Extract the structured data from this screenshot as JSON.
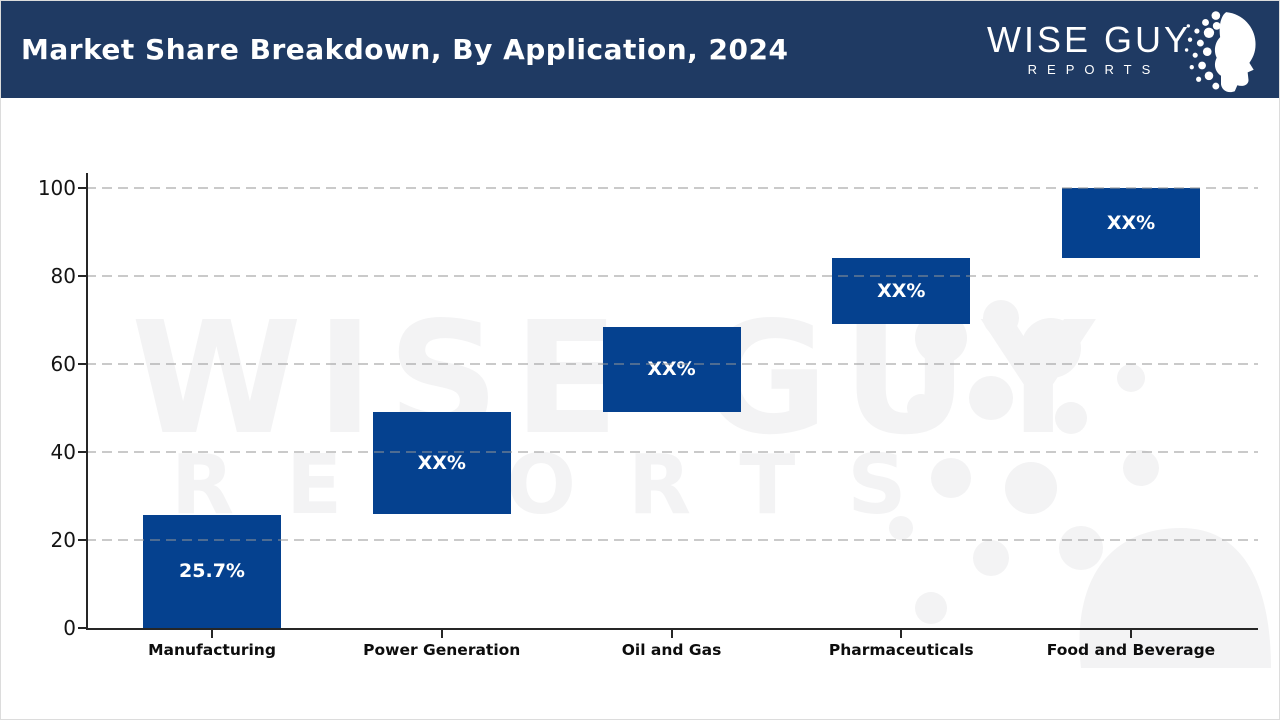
{
  "header": {
    "title": "Market Share Breakdown, By Application, 2024",
    "background_color": "#1f3a63",
    "logo": {
      "line1": "WISE GUY",
      "line2": "R E P O R T S",
      "icon": "dotted-head-profile-icon"
    }
  },
  "watermark": {
    "line1": "WISE GUY",
    "line2": "R E P O R T S"
  },
  "chart_data": {
    "type": "bar",
    "subtype": "waterfall",
    "title": "Market Share Breakdown, By Application, 2024",
    "xlabel": "",
    "ylabel": "",
    "categories": [
      "Manufacturing",
      "Power Generation",
      "Oil and Gas",
      "Pharmaceuticals",
      "Food and Beverage"
    ],
    "segments": [
      {
        "category": "Manufacturing",
        "start": 0,
        "end": 25.7,
        "label": "25.7%"
      },
      {
        "category": "Power Generation",
        "start": 26,
        "end": 49,
        "label": "XX%"
      },
      {
        "category": "Oil and Gas",
        "start": 49,
        "end": 68.5,
        "label": "XX%"
      },
      {
        "category": "Pharmaceuticals",
        "start": 69,
        "end": 84,
        "label": "XX%"
      },
      {
        "category": "Food and Beverage",
        "start": 84,
        "end": 100,
        "label": "XX%"
      }
    ],
    "yticks": [
      0,
      20,
      40,
      60,
      80,
      100
    ],
    "ylim": [
      0,
      104
    ],
    "grid": "horizontal-dashed",
    "legend": "none",
    "bar_color": "#05418f",
    "bar_label_color": "#ffffff"
  }
}
